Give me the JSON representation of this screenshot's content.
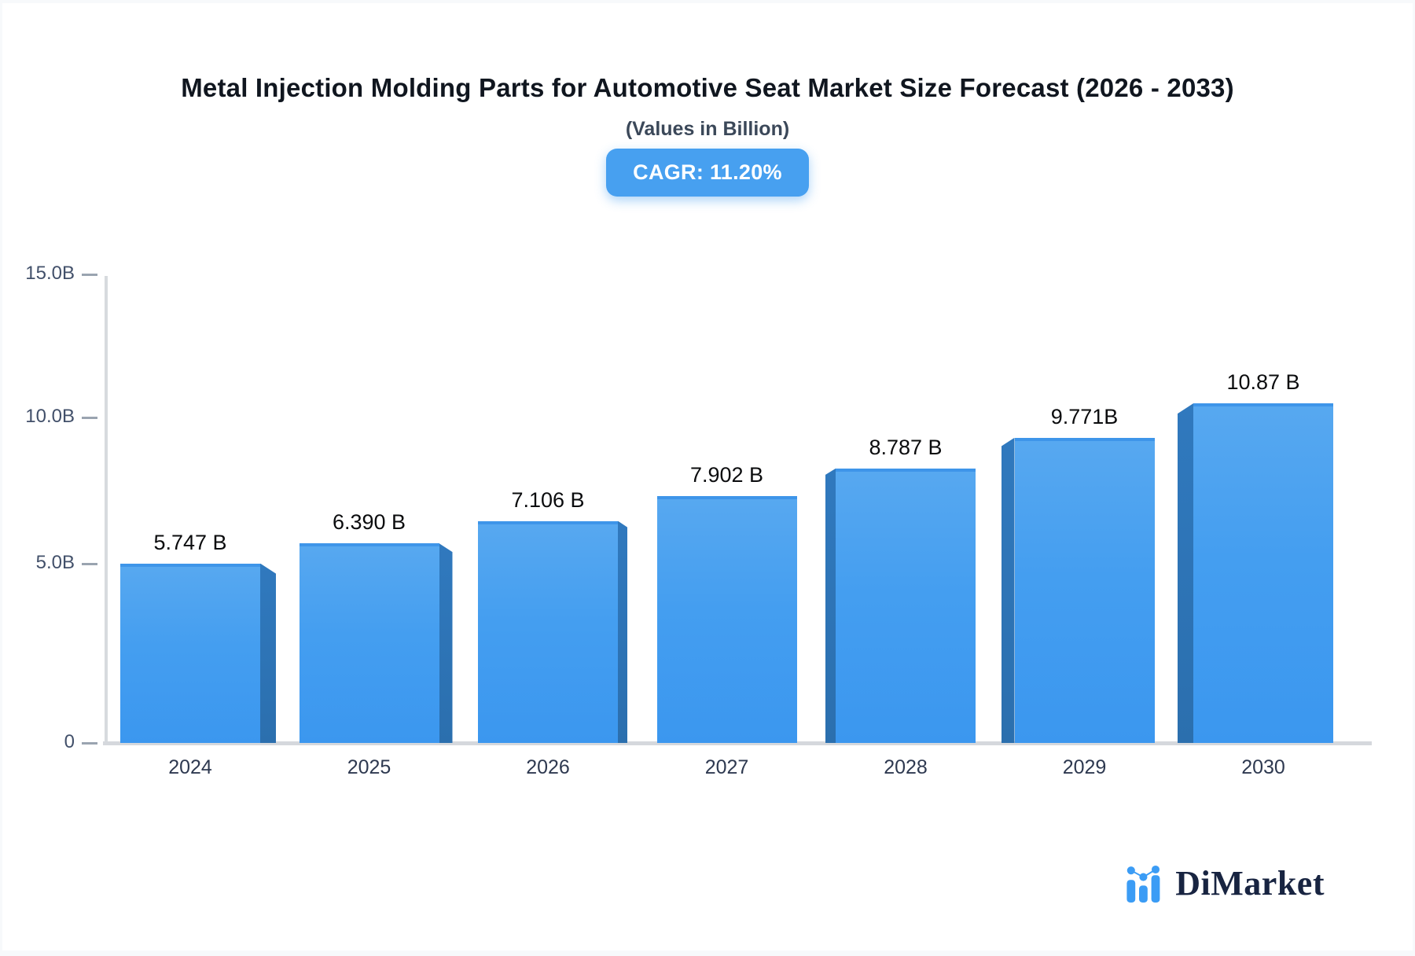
{
  "header": {
    "title": "Metal Injection Molding Parts for Automotive Seat Market Size Forecast (2026 - 2033)",
    "subtitle": "(Values in Billion)",
    "cagr_label": "CAGR: 11.20%"
  },
  "chart_data": {
    "type": "bar",
    "title": "Metal Injection Molding Parts for Automotive Seat Market Size Forecast (2026 - 2033)",
    "subtitle": "(Values in Billion)",
    "categories": [
      "2024",
      "2025",
      "2026",
      "2027",
      "2028",
      "2029",
      "2030"
    ],
    "values": [
      5.747,
      6.39,
      7.106,
      7.902,
      8.787,
      9.771,
      10.87
    ],
    "value_labels": [
      "5.747 B",
      "6.390 B",
      "7.106 B",
      "7.902 B",
      "8.787 B",
      "9.771B",
      "10.87 B"
    ],
    "xlabel": "",
    "ylabel": "",
    "ylim": [
      0,
      15
    ],
    "yticks": [
      {
        "label": "15.0B",
        "value": 15
      },
      {
        "label": "10.0B",
        "value": 10
      },
      {
        "label": "5.0B",
        "value": 5
      },
      {
        "label": "0",
        "value": 0
      }
    ],
    "grid": false,
    "legend": false,
    "bar_style": "3d-beveled"
  },
  "footer": {
    "brand": "DiMarket",
    "logo_icon": "bar-chart-logo-icon"
  },
  "colors": {
    "bar_face_top": "#57a8f0",
    "bar_face_bottom": "#3b97ef",
    "bar_top_edge": "#3e95e9",
    "bar_side": "#2e76ba",
    "badge_bg": "#47a0f0",
    "badge_text": "#ffffff",
    "axis": "#d6d9de",
    "tick_dash": "#9aa4b0",
    "tick_label": "#42506a",
    "year_label": "#2e3950",
    "value_label": "#0b0c0e",
    "title": "#10161f",
    "subtitle": "#3b4859",
    "logo_blue": "#3b9cf5",
    "brand_text": "#182441"
  }
}
